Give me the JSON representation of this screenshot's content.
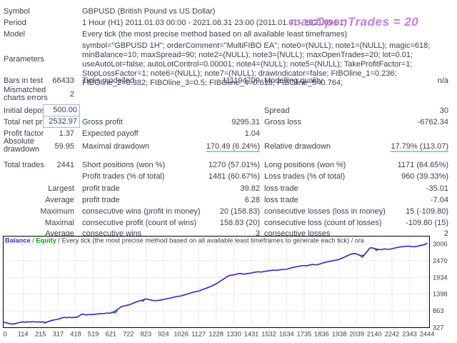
{
  "watermark": "maxOpenTrades = 20",
  "colors": {
    "text": "#3d3d52",
    "balance_line": "#4a28c4",
    "equity_line": "#00a800",
    "grid": "#c3c3c3",
    "chart_border": "#000000",
    "drawdown_underline": "#8ade8a",
    "value_box_border": "#9db6de",
    "watermark": "#c77ddb"
  },
  "stats": {
    "symbol": {
      "label": "Symbol",
      "value": "GBPUSD (British Pound vs US Dollar)"
    },
    "period": {
      "label": "Period",
      "value": "1 Hour (H1) 2011.01.03 00:00 - 2021.08.31 23:00 (2011.01.01 - 2021.09.01)"
    },
    "model": {
      "label": "Model",
      "value": "Every tick (the most precise method based on all available least timeframes)"
    },
    "parameters": {
      "label": "Parameters",
      "value": "symbol=\"GBPUSD 1H\"; orderComment=\"MultiFIBO EA\"; note0=(NULL); note1=(NULL); magic=618; minBalance=10; maxSpread=90; note2=(NULL); note3=(NULL); maxOpenTrades=20; lot=0.01; useAutoLot=false; autoLotControl=0.00001; note4=(NULL); note5=(NULL); TakeProfitFactor=1; StopLossFactor=1; note6=(NULL); note7=(NULL); drawIndicator=false; FIBOline_1=0.236; FIBOline_2=0.382; FIBOline_3=0.5; FIBOline_4=0.618; FIBOline_5=0.764;"
    },
    "bars": {
      "l1": "Bars in test",
      "v1": "66433",
      "l2": "Ticks modelled",
      "v2": "111194709",
      "l3": "Modelling quality",
      "v3": "n/a"
    },
    "mismatched": {
      "l1": "Mismatched charts errors",
      "v1": "2"
    },
    "initial": {
      "l1": "Initial deposit",
      "v1": "500.00",
      "l3": "Spread",
      "v3": "30"
    },
    "netprofit": {
      "l1": "Total net profit",
      "v1": "2532.97",
      "l2": "Gross profit",
      "v2": "9295.31",
      "l3": "Gross loss",
      "v3": "-6762.34"
    },
    "profitfactor": {
      "l1": "Profit factor",
      "v1": "1.37",
      "l2": "Expected payoff",
      "v2": "1.04"
    },
    "drawdown": {
      "l1": "Absolute drawdown",
      "v1": "59.95",
      "l2": "Maximal drawdown",
      "v2": "170.49 (6.24%)",
      "l3": "Relative drawdown",
      "v3": "17.79% (113.07)"
    },
    "totaltrades": {
      "l1": "Total trades",
      "v1": "2441",
      "l2": "Short positions (won %)",
      "v2": "1270 (57.01%)",
      "l3": "Long positions (won %)",
      "v3": "1171 (64.65%)"
    },
    "profittrades": {
      "l2": "Profit trades (% of total)",
      "v2": "1481 (60.67%)",
      "l3": "Loss trades (% of total)",
      "v3": "960 (39.33%)"
    },
    "largest": {
      "k": "Largest",
      "l2": "profit trade",
      "v2": "39.82",
      "l3": "loss trade",
      "v3": "-35.01"
    },
    "averagetrade": {
      "k": "Average",
      "l2": "profit trade",
      "v2": "6.28",
      "l3": "loss trade",
      "v3": "-7.04"
    },
    "maxconsec": {
      "k": "Maximum",
      "l2": "consecutive wins (profit in money)",
      "v2": "20 (158.83)",
      "l3": "consecutive losses (loss in money)",
      "v3": "15 (-109.80)"
    },
    "maximalconsec": {
      "k": "Maximal",
      "l2": "consecutive profit (count of wins)",
      "v2": "158.83 (20)",
      "l3": "consecutive loss (count of losses)",
      "v3": "-109.80 (15)"
    },
    "avgconsec": {
      "k": "Average",
      "l2": "consecutive wins",
      "v2": "3",
      "l3": "consecutive losses",
      "v3": "2"
    }
  },
  "chart_data": {
    "type": "line",
    "legend": [
      {
        "name": "Balance",
        "color": "#4a28c4"
      },
      {
        "name": "Equity",
        "color": "#00a800"
      }
    ],
    "title_rest": "Every tick (the most precise method based on all available least timeframes to generate each tick) / n/a",
    "x_ticks": [
      0,
      114,
      215,
      317,
      418,
      519,
      621,
      722,
      823,
      924,
      1026,
      1127,
      1228,
      1330,
      1431,
      1532,
      1634,
      1735,
      1836,
      1938,
      2039,
      2140,
      2242,
      2343,
      2444
    ],
    "y_ticks": [
      327,
      863,
      1398,
      1934,
      2470,
      3006
    ],
    "xlim": [
      0,
      2450
    ],
    "ylim": [
      327,
      3270
    ],
    "grid": true,
    "legend_position": "top-left",
    "series": [
      {
        "name": "Balance",
        "points": [
          [
            0,
            500
          ],
          [
            15,
            488
          ],
          [
            30,
            462
          ],
          [
            45,
            450
          ],
          [
            60,
            444
          ],
          [
            75,
            462
          ],
          [
            90,
            486
          ],
          [
            105,
            505
          ],
          [
            114,
            512
          ],
          [
            125,
            500
          ],
          [
            140,
            516
          ],
          [
            155,
            506
          ],
          [
            170,
            520
          ],
          [
            185,
            508
          ],
          [
            200,
            515
          ],
          [
            215,
            502
          ],
          [
            228,
            516
          ],
          [
            240,
            492
          ],
          [
            252,
            505
          ],
          [
            265,
            532
          ],
          [
            280,
            556
          ],
          [
            295,
            578
          ],
          [
            310,
            592
          ],
          [
            317,
            600
          ],
          [
            328,
            614
          ],
          [
            340,
            642
          ],
          [
            352,
            658
          ],
          [
            365,
            644
          ],
          [
            378,
            660
          ],
          [
            392,
            648
          ],
          [
            405,
            658
          ],
          [
            418,
            656
          ],
          [
            428,
            668
          ],
          [
            438,
            700
          ],
          [
            448,
            740
          ],
          [
            458,
            764
          ],
          [
            468,
            748
          ],
          [
            480,
            734
          ],
          [
            492,
            744
          ],
          [
            505,
            752
          ],
          [
            519,
            748
          ],
          [
            532,
            758
          ],
          [
            545,
            768
          ],
          [
            558,
            778
          ],
          [
            572,
            772
          ],
          [
            586,
            784
          ],
          [
            600,
            792
          ],
          [
            612,
            788
          ],
          [
            621,
            800
          ],
          [
            632,
            820
          ],
          [
            645,
            856
          ],
          [
            658,
            900
          ],
          [
            670,
            952
          ],
          [
            682,
            1002
          ],
          [
            694,
            1018
          ],
          [
            706,
            1032
          ],
          [
            722,
            1056
          ],
          [
            734,
            1076
          ],
          [
            746,
            1098
          ],
          [
            758,
            1130
          ],
          [
            770,
            1158
          ],
          [
            782,
            1178
          ],
          [
            794,
            1196
          ],
          [
            806,
            1212
          ],
          [
            818,
            1238
          ],
          [
            823,
            1248
          ],
          [
            832,
            1236
          ],
          [
            844,
            1222
          ],
          [
            856,
            1208
          ],
          [
            868,
            1196
          ],
          [
            880,
            1192
          ],
          [
            892,
            1198
          ],
          [
            904,
            1206
          ],
          [
            916,
            1220
          ],
          [
            924,
            1228
          ],
          [
            938,
            1248
          ],
          [
            952,
            1262
          ],
          [
            966,
            1276
          ],
          [
            980,
            1298
          ],
          [
            994,
            1316
          ],
          [
            1008,
            1330
          ],
          [
            1026,
            1342
          ],
          [
            1040,
            1368
          ],
          [
            1054,
            1390
          ],
          [
            1068,
            1412
          ],
          [
            1082,
            1438
          ],
          [
            1096,
            1462
          ],
          [
            1110,
            1480
          ],
          [
            1127,
            1498
          ],
          [
            1140,
            1530
          ],
          [
            1154,
            1556
          ],
          [
            1168,
            1582
          ],
          [
            1182,
            1614
          ],
          [
            1196,
            1644
          ],
          [
            1210,
            1682
          ],
          [
            1228,
            1728
          ],
          [
            1240,
            1776
          ],
          [
            1252,
            1820
          ],
          [
            1264,
            1858
          ],
          [
            1276,
            1902
          ],
          [
            1288,
            1952
          ],
          [
            1300,
            1986
          ],
          [
            1312,
            2006
          ],
          [
            1324,
            2016
          ],
          [
            1330,
            2014
          ],
          [
            1342,
            2036
          ],
          [
            1354,
            2052
          ],
          [
            1366,
            2066
          ],
          [
            1378,
            2050
          ],
          [
            1390,
            2042
          ],
          [
            1402,
            2056
          ],
          [
            1414,
            2064
          ],
          [
            1431,
            2078
          ],
          [
            1444,
            2094
          ],
          [
            1457,
            2108
          ],
          [
            1470,
            2118
          ],
          [
            1483,
            2108
          ],
          [
            1496,
            2118
          ],
          [
            1509,
            2132
          ],
          [
            1522,
            2142
          ],
          [
            1532,
            2148
          ],
          [
            1546,
            2162
          ],
          [
            1560,
            2172
          ],
          [
            1574,
            2160
          ],
          [
            1588,
            2176
          ],
          [
            1602,
            2184
          ],
          [
            1616,
            2192
          ],
          [
            1634,
            2198
          ],
          [
            1648,
            2220
          ],
          [
            1662,
            2242
          ],
          [
            1676,
            2262
          ],
          [
            1690,
            2278
          ],
          [
            1704,
            2292
          ],
          [
            1718,
            2306
          ],
          [
            1735,
            2318
          ],
          [
            1748,
            2308
          ],
          [
            1761,
            2326
          ],
          [
            1774,
            2342
          ],
          [
            1787,
            2352
          ],
          [
            1800,
            2338
          ],
          [
            1813,
            2348
          ],
          [
            1826,
            2366
          ],
          [
            1836,
            2386
          ],
          [
            1850,
            2408
          ],
          [
            1864,
            2428
          ],
          [
            1878,
            2446
          ],
          [
            1892,
            2462
          ],
          [
            1906,
            2478
          ],
          [
            1920,
            2492
          ],
          [
            1938,
            2516
          ],
          [
            1950,
            2544
          ],
          [
            1962,
            2572
          ],
          [
            1974,
            2602
          ],
          [
            1986,
            2636
          ],
          [
            1998,
            2668
          ],
          [
            2010,
            2690
          ],
          [
            2022,
            2700
          ],
          [
            2039,
            2688
          ],
          [
            2048,
            2664
          ],
          [
            2056,
            2642
          ],
          [
            2064,
            2630
          ],
          [
            2072,
            2638
          ],
          [
            2079,
            2646
          ],
          [
            2086,
            2682
          ],
          [
            2093,
            2730
          ],
          [
            2100,
            2780
          ],
          [
            2107,
            2832
          ],
          [
            2114,
            2872
          ],
          [
            2120,
            2888
          ],
          [
            2128,
            2880
          ],
          [
            2140,
            2866
          ],
          [
            2152,
            2848
          ],
          [
            2164,
            2832
          ],
          [
            2176,
            2824
          ],
          [
            2188,
            2838
          ],
          [
            2200,
            2850
          ],
          [
            2212,
            2842
          ],
          [
            2224,
            2836
          ],
          [
            2242,
            2856
          ],
          [
            2254,
            2872
          ],
          [
            2266,
            2888
          ],
          [
            2278,
            2902
          ],
          [
            2290,
            2914
          ],
          [
            2302,
            2922
          ],
          [
            2314,
            2928
          ],
          [
            2326,
            2934
          ],
          [
            2343,
            2938
          ],
          [
            2354,
            2924
          ],
          [
            2365,
            2916
          ],
          [
            2376,
            2926
          ],
          [
            2388,
            2936
          ],
          [
            2400,
            2952
          ],
          [
            2412,
            2966
          ],
          [
            2424,
            2978
          ],
          [
            2436,
            3000
          ],
          [
            2444,
            3046
          ]
        ]
      },
      {
        "name": "Equity",
        "dip_segments": [
          [
            [
              228,
              516
            ],
            [
              240,
              470
            ],
            [
              252,
              505
            ]
          ],
          [
            [
              632,
              820
            ],
            [
              645,
              790
            ],
            [
              658,
              868
            ]
          ],
          [
            [
              794,
              1196
            ],
            [
              806,
              1168
            ],
            [
              818,
              1238
            ]
          ],
          [
            [
              2056,
              2642
            ],
            [
              2072,
              2580
            ],
            [
              2086,
              2682
            ]
          ],
          [
            [
              2140,
              2866
            ],
            [
              2152,
              2796
            ],
            [
              2164,
              2832
            ]
          ]
        ]
      }
    ]
  }
}
